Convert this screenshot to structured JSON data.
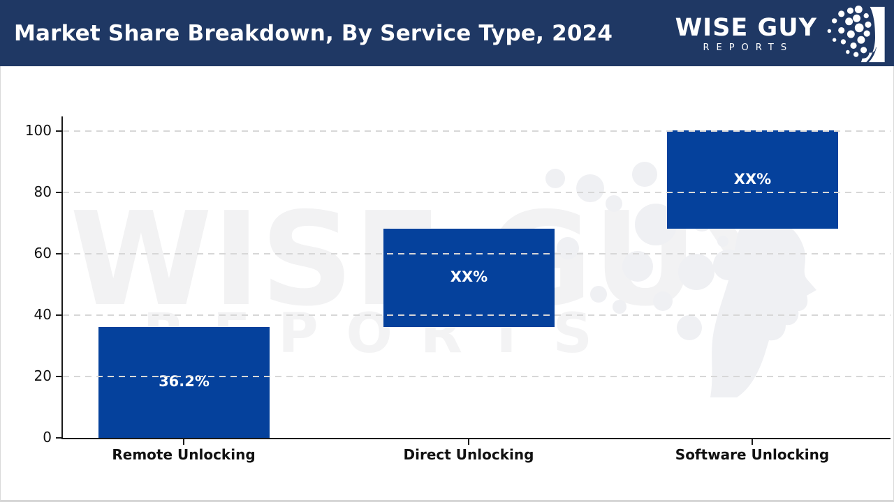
{
  "header": {
    "title": "Market Share Breakdown, By Service Type, 2024",
    "bg_color": "#1f3864",
    "logo": {
      "line1": "WISE GUY",
      "line2": "REPORTS"
    }
  },
  "watermark": {
    "line1": "WISE GUY",
    "line2": "REPORTS"
  },
  "chart_data": {
    "type": "bar",
    "subtype": "floating-waterfall",
    "title": "Market Share Breakdown, By Service Type, 2024",
    "categories": [
      "Remote Unlocking",
      "Direct Unlocking",
      "Software Unlocking"
    ],
    "bars": [
      {
        "category": "Remote Unlocking",
        "start": 0,
        "end": 36.2,
        "label": "36.2%"
      },
      {
        "category": "Direct Unlocking",
        "start": 36.2,
        "end": 68.2,
        "label": "XX%"
      },
      {
        "category": "Software Unlocking",
        "start": 68.2,
        "end": 100.2,
        "label": "XX%"
      }
    ],
    "y_ticks": [
      0,
      20,
      40,
      60,
      80,
      100
    ],
    "ylim": [
      0,
      104.5
    ],
    "xlabel": "",
    "ylabel": "",
    "grid": "dashed-horizontal",
    "legend": "none",
    "bar_color": "#05419c",
    "grid_color": "#d7d7d7",
    "axis_color": "#1a1a1a",
    "bar_label_color": "#ffffff"
  }
}
